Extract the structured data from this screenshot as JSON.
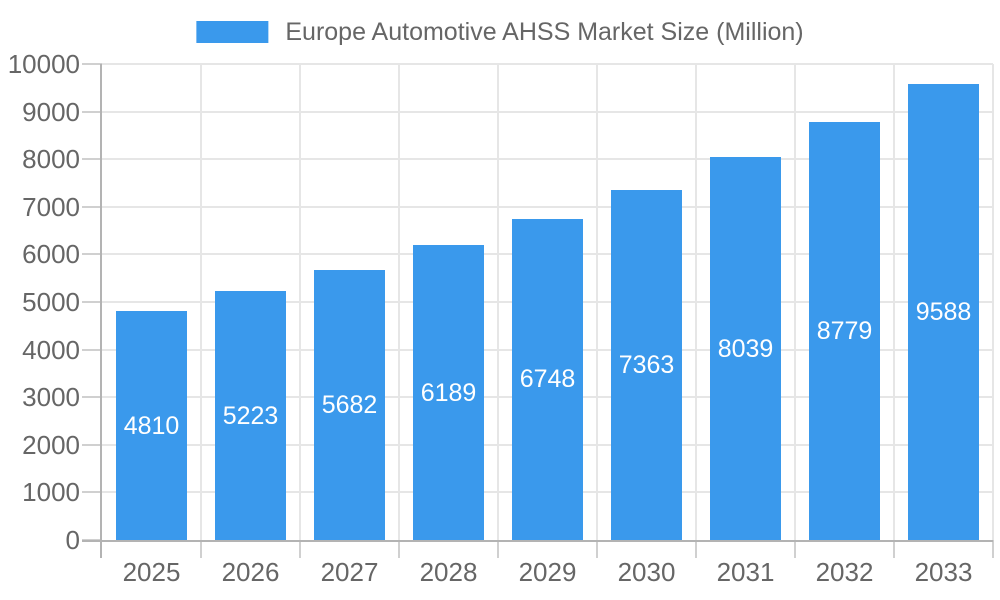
{
  "chart_data": {
    "type": "bar",
    "title": "Europe Automotive AHSS Market Size (Million)",
    "categories": [
      "2025",
      "2026",
      "2027",
      "2028",
      "2029",
      "2030",
      "2031",
      "2032",
      "2033"
    ],
    "values": [
      4810,
      5223,
      5682,
      6189,
      6748,
      7363,
      8039,
      8779,
      9588
    ],
    "xlabel": "",
    "ylabel": "",
    "ylim": [
      0,
      10000
    ],
    "y_ticks": [
      0,
      1000,
      2000,
      3000,
      4000,
      5000,
      6000,
      7000,
      8000,
      9000,
      10000
    ],
    "grid": true,
    "legend_position": "top-center",
    "colors": {
      "bar": "#3A99EC",
      "bar_value_label": "#ffffff",
      "axis_line": "#b3b3b3",
      "gridline": "#e6e6e6",
      "tick_mark": "#d0d0d0",
      "tick_text": "#666666",
      "legend_text": "#666666",
      "background": "#ffffff"
    }
  }
}
